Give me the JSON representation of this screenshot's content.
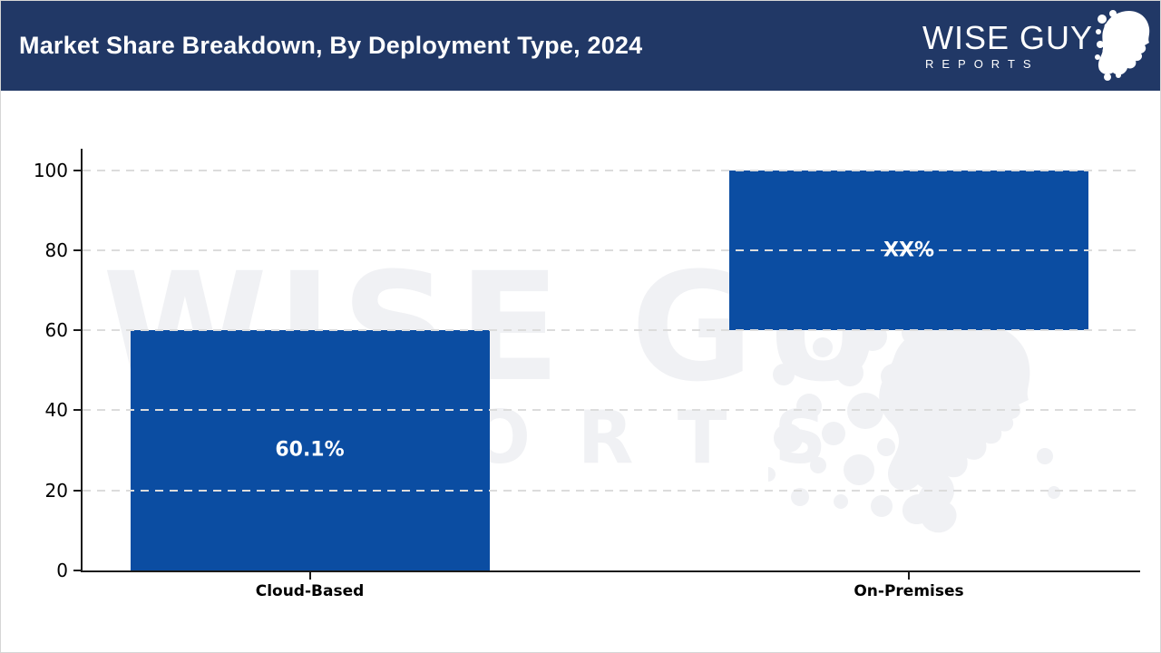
{
  "header": {
    "title": "Market Share Breakdown, By Deployment Type, 2024",
    "logo": {
      "brand_line1": "WISE GUY",
      "brand_line2": "REPORTS",
      "face_icon": "dotted-face-profile-icon"
    }
  },
  "watermark": {
    "line1": "WISE GUY",
    "line2": "REPORTS"
  },
  "colors": {
    "header_bg": "#213866",
    "bar": "#0B4DA2",
    "gridline": "#dcdcdc",
    "axis": "#1a1a1a",
    "watermark": "#f0f1f4",
    "card_border": "#d6d6d6",
    "bar_label": "#ffffff"
  },
  "chart_data": {
    "type": "bar",
    "categories": [
      "Cloud-Based",
      "On-Premises"
    ],
    "bars": [
      {
        "category": "Cloud-Based",
        "from": 0,
        "to": 60.1,
        "label": "60.1%"
      },
      {
        "category": "On-Premises",
        "from": 60,
        "to": 100,
        "label": "XX%"
      }
    ],
    "yticks": [
      0,
      20,
      40,
      60,
      80,
      100
    ],
    "ylim": [
      0,
      105
    ],
    "xlabel": "",
    "ylabel": "",
    "grid": "dashed horizontal",
    "legend": "none"
  }
}
